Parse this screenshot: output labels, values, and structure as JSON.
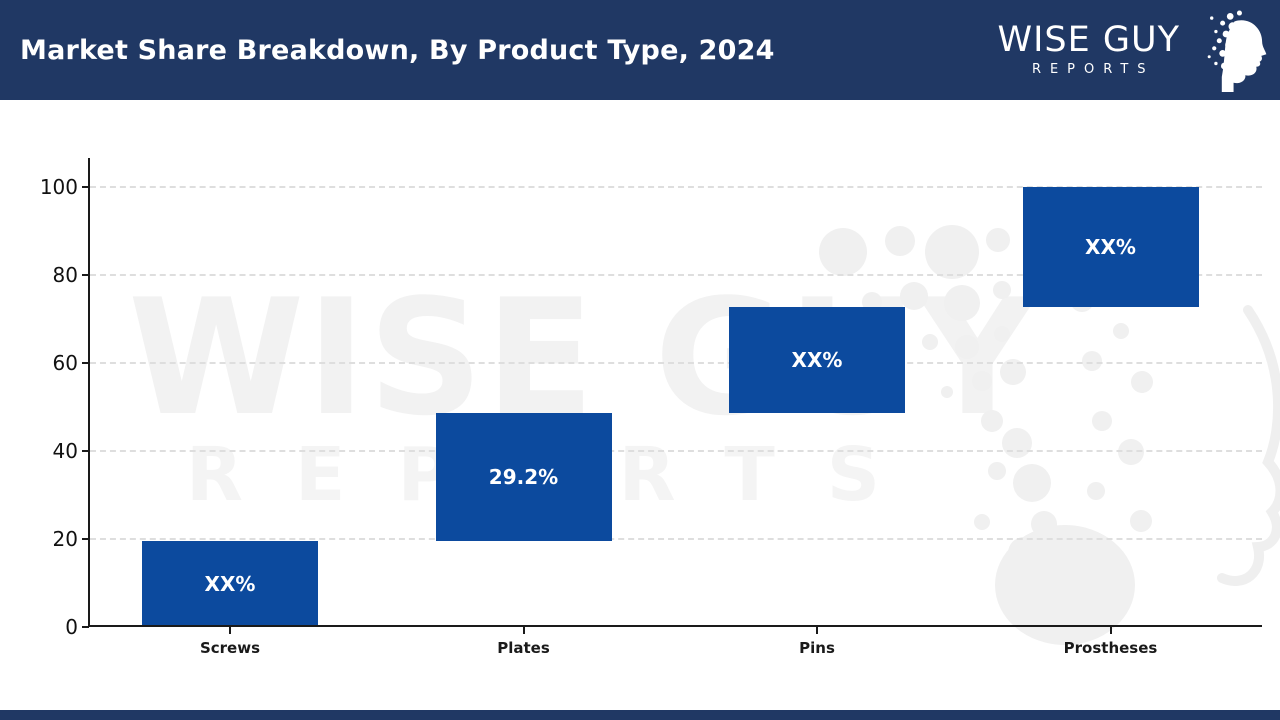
{
  "header": {
    "title": "Market Share Breakdown, By Product Type, 2024",
    "brand_name": "WISE GUY",
    "brand_sub": "REPORTS"
  },
  "watermark": {
    "line1": "WISE GUY",
    "line2": "REPORTS"
  },
  "colors": {
    "header_bg": "#203864",
    "footer_bg": "#203864",
    "bar": "#0c4a9e",
    "bar_label": "#ffffff",
    "gridline": "#dedede",
    "axis": "#1a1a1a",
    "watermark": "#f2f2f2"
  },
  "chart_data": {
    "type": "bar",
    "subtype": "floating-waterfall",
    "title": "Market Share Breakdown, By Product Type, 2024",
    "categories": [
      "Screws",
      "Plates",
      "Pins",
      "Prostheses"
    ],
    "segments": [
      {
        "category": "Screws",
        "start": 0,
        "end": 19.5,
        "label": "XX%"
      },
      {
        "category": "Plates",
        "start": 19.5,
        "end": 48.7,
        "label": "29.2%"
      },
      {
        "category": "Pins",
        "start": 48.7,
        "end": 72.8,
        "label": "XX%"
      },
      {
        "category": "Prostheses",
        "start": 72.8,
        "end": 100,
        "label": "XX%"
      }
    ],
    "xlabel": "",
    "ylabel": "",
    "y_ticks": [
      0,
      20,
      40,
      60,
      80,
      100
    ],
    "ylim": [
      0,
      100
    ],
    "grid": "horizontal-dashed",
    "legend": "none",
    "bar_color": "#0c4a9e"
  }
}
